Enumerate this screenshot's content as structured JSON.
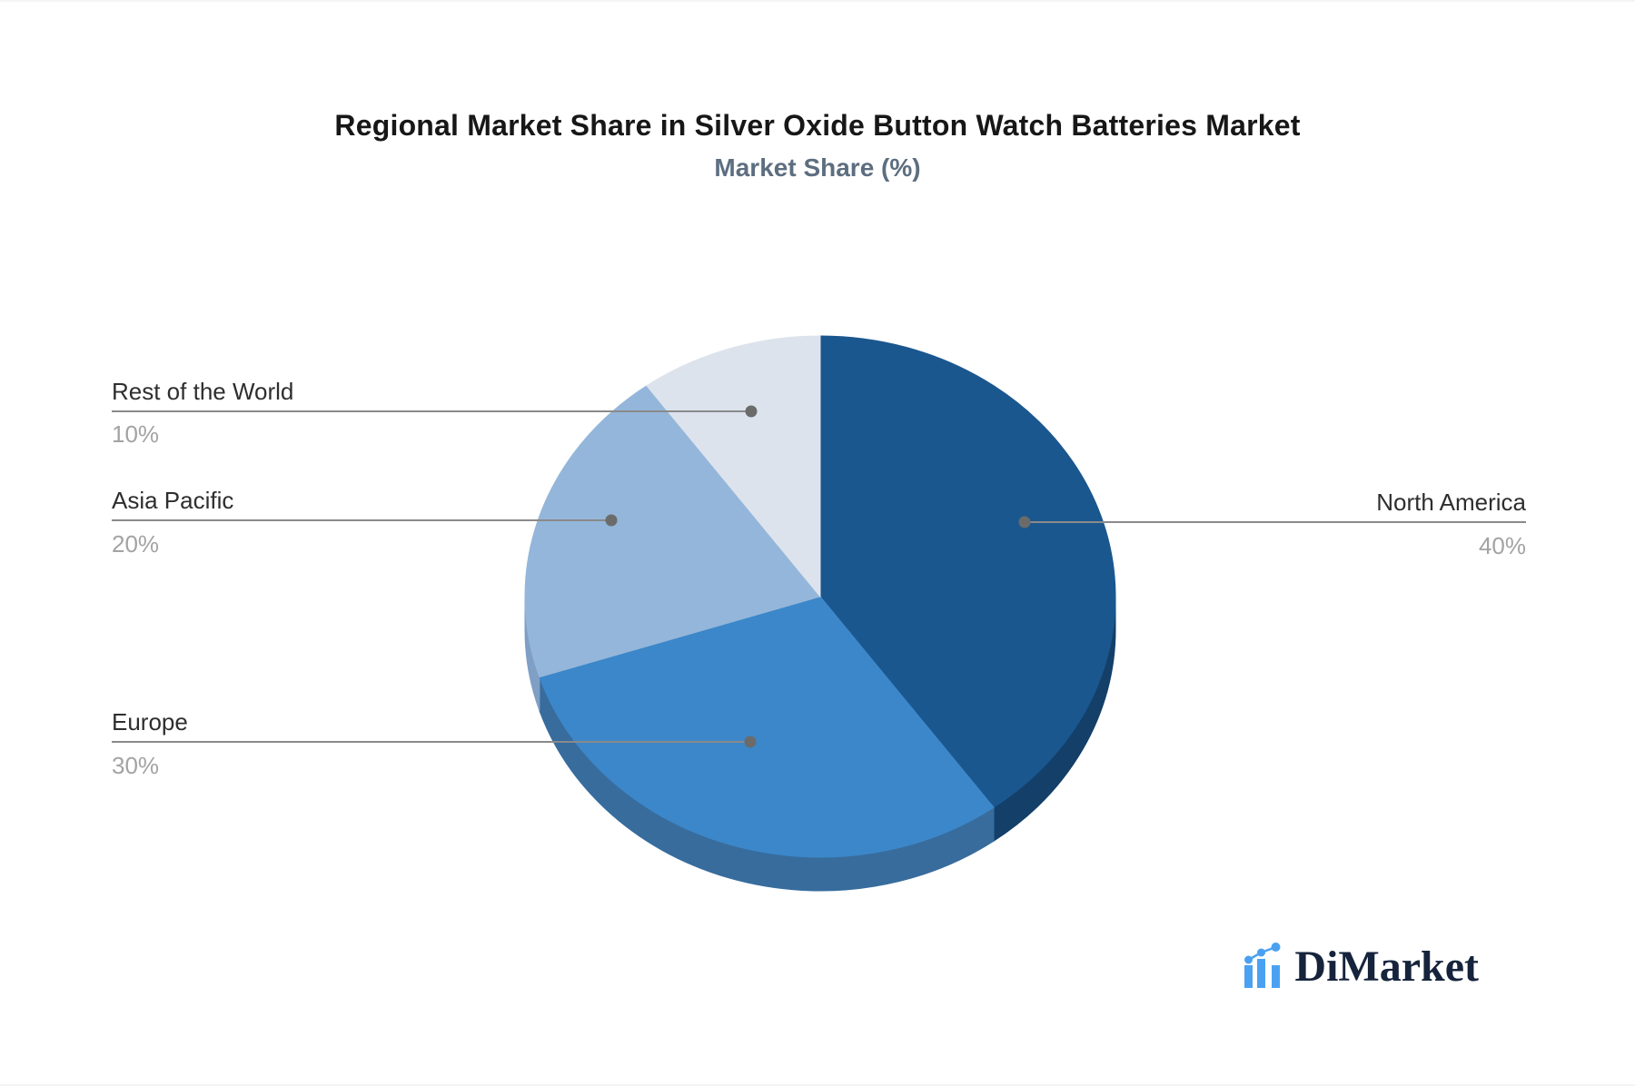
{
  "chart_data": {
    "type": "pie",
    "effect": "3d",
    "title": "Regional Market Share in Silver Oxide Button Watch Batteries Market",
    "subtitle": "Market Share (%)",
    "unit": "%",
    "start_angle": "top",
    "direction": "clockwise",
    "legend_position": "callout-labels",
    "slices": [
      {
        "label": "North America",
        "value": 40,
        "display": "40%",
        "color": "#1b578f",
        "side_color": "#133f69"
      },
      {
        "label": "Europe",
        "value": 30,
        "display": "30%",
        "color": "#3c87c9",
        "side_color": "#376c9d"
      },
      {
        "label": "Asia Pacific",
        "value": 20,
        "display": "20%",
        "color": "#94b6da",
        "side_color": "#7f9fc5"
      },
      {
        "label": "Rest of the World",
        "value": 10,
        "display": "10%",
        "color": "#dde3ed",
        "side_color": "#b9c3d4"
      }
    ],
    "style": {
      "title_color": "#171717",
      "subtitle_color": "#5d6e80",
      "label_color": "#2e2e2e",
      "value_color": "#a3a3a3",
      "leader_line_color": "#8a8a8a",
      "leader_dot_color": "#6b6b6b",
      "background": "#ffffff"
    }
  },
  "brand": {
    "name": "DiMarket",
    "icon": "bar-line-chart-icon",
    "text_color": "#16233c",
    "icon_color": "#4ba1f1"
  }
}
